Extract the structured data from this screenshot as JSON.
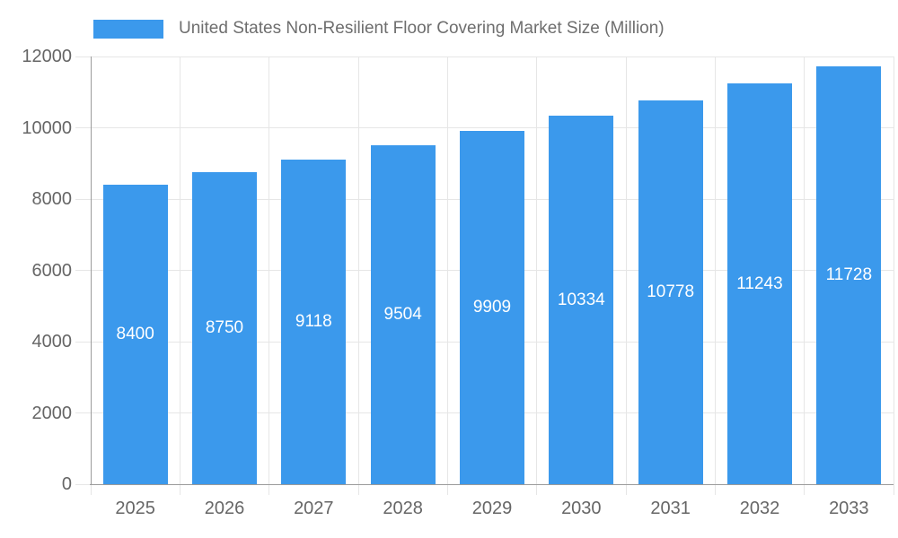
{
  "chart": {
    "colors": {
      "bar": "#3B99EC",
      "grid": "#e6e6e6",
      "axis": "#9b9b9b",
      "axis_text": "#666666",
      "legend_text": "#6e6e6e",
      "value_text": "#ffffff",
      "background": "#ffffff"
    }
  },
  "chart_data": {
    "type": "bar",
    "title": "United States Non-Resilient Floor Covering Market Size (Million)",
    "categories": [
      "2025",
      "2026",
      "2027",
      "2028",
      "2029",
      "2030",
      "2031",
      "2032",
      "2033"
    ],
    "values": [
      8400,
      8750,
      9118,
      9504,
      9909,
      10334,
      10778,
      11243,
      11728
    ],
    "xlabel": "",
    "ylabel": "",
    "ylim": [
      0,
      12000
    ],
    "yticks": [
      0,
      2000,
      4000,
      6000,
      8000,
      10000,
      12000
    ],
    "grid": true,
    "legend_position": "top",
    "value_labels_position": "inside-center"
  }
}
